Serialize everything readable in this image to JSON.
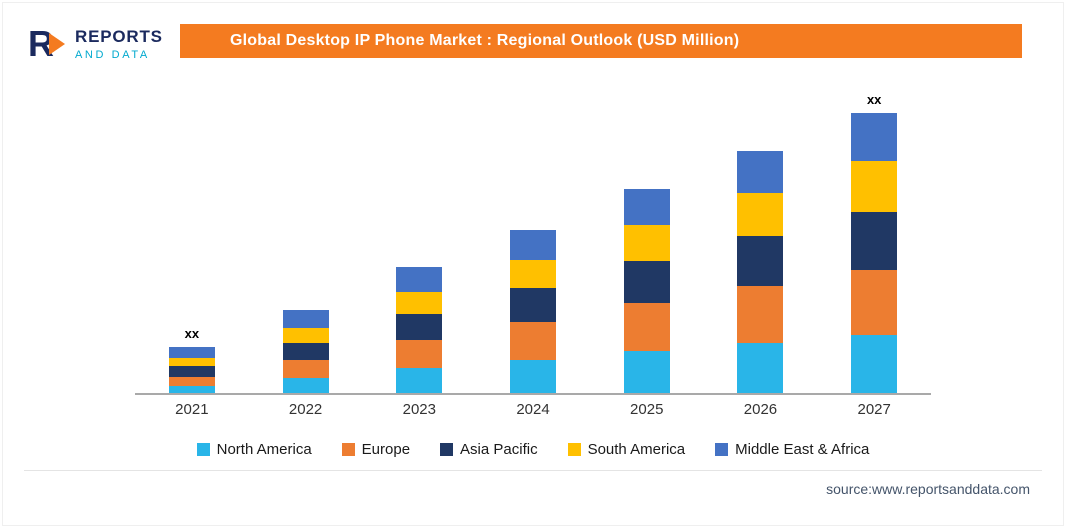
{
  "header": {
    "title": "Global Desktop IP Phone Market : Regional Outlook (USD Million)",
    "banner_color": "#F47B20",
    "logo": {
      "mark_letter": "R",
      "line1": "REPORTS",
      "line2": "AND DATA",
      "navy": "#1B2A5E",
      "teal": "#00A9CE",
      "orange": "#F47B20"
    }
  },
  "chart_data": {
    "type": "bar",
    "stacked": true,
    "title": "Global Desktop IP Phone Market : Regional Outlook (USD Million)",
    "xlabel": "",
    "ylabel": "",
    "unit": "USD Million",
    "value_axis_visible": false,
    "grid": false,
    "legend_position": "bottom",
    "categories": [
      "2021",
      "2022",
      "2023",
      "2024",
      "2025",
      "2026",
      "2027"
    ],
    "series": [
      {
        "name": "North America",
        "color": "#29B5E8",
        "values": [
          7,
          15,
          25,
          33,
          42,
          50,
          58
        ]
      },
      {
        "name": "Europe",
        "color": "#ED7D31",
        "values": [
          9,
          18,
          28,
          38,
          48,
          57,
          65
        ]
      },
      {
        "name": "Asia Pacific",
        "color": "#203864",
        "values": [
          11,
          17,
          26,
          34,
          42,
          50,
          58
        ]
      },
      {
        "name": "South America",
        "color": "#FFC000",
        "values": [
          8,
          15,
          22,
          28,
          36,
          43,
          51
        ]
      },
      {
        "name": "Middle East & Africa",
        "color": "#4472C4",
        "values": [
          11,
          18,
          25,
          30,
          36,
          42,
          48
        ]
      }
    ],
    "annotations": [
      {
        "category": "2021",
        "text": "xx"
      },
      {
        "category": "2027",
        "text": "xx"
      }
    ]
  },
  "footer": {
    "source": "source:www.reportsanddata.com"
  }
}
